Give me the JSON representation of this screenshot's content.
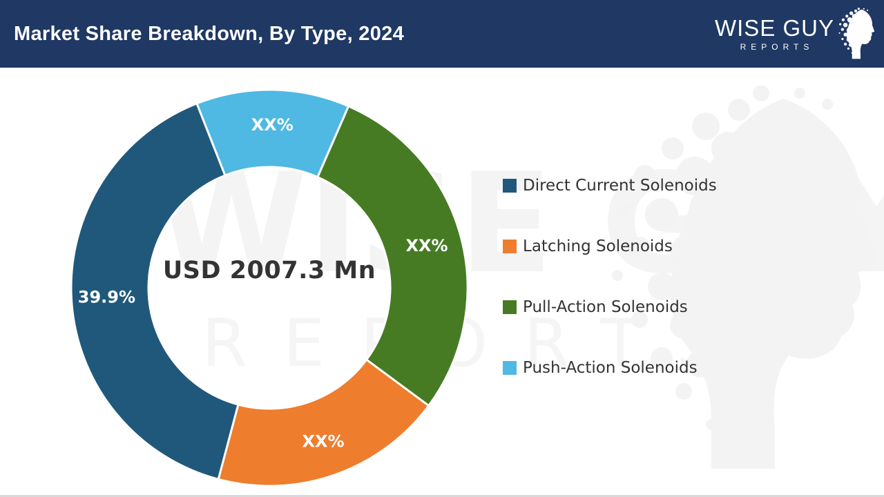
{
  "header": {
    "title": "Market Share Breakdown, By Type, 2024",
    "bg_color": "#1f3864",
    "logo_line1": "WISE GUY",
    "logo_line2": "REPORTS"
  },
  "chart_data": {
    "type": "pie",
    "subtype": "donut",
    "title": "Market Share Breakdown, By Type, 2024",
    "center_label": "USD 2007.3 Mn",
    "legend_position": "right",
    "start_angle_deg": 194.9,
    "draw_sequence": [
      0,
      3,
      2,
      1
    ],
    "segments": [
      {
        "name": "Direct Current Solenoids",
        "value": 39.9,
        "display_label": "39.9%",
        "color": "#20587c"
      },
      {
        "name": "Latching Solenoids",
        "value": 19.0,
        "display_label": "XX%",
        "color": "#ee7d2e"
      },
      {
        "name": "Pull-Action Solenoids",
        "value": 28.6,
        "display_label": "XX%",
        "color": "#467b24"
      },
      {
        "name": "Push-Action Solenoids",
        "value": 12.5,
        "display_label": "XX%",
        "color": "#4fb8e3"
      }
    ]
  },
  "watermark": {
    "line1": "WISE GUY",
    "line2": "REPORTS"
  }
}
